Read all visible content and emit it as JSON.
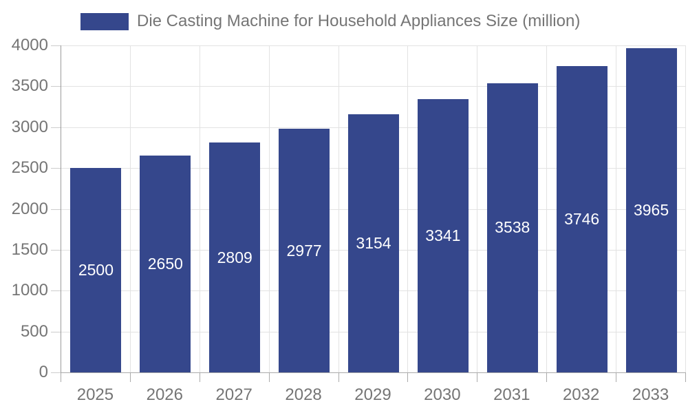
{
  "chart_data": {
    "type": "bar",
    "title": "Die Casting Machine for Household Appliances Size (million)",
    "legend_entries": [
      "Die Casting Machine for Household Appliances Size (million)"
    ],
    "legend_position": "top-left",
    "categories": [
      "2025",
      "2026",
      "2027",
      "2028",
      "2029",
      "2030",
      "2031",
      "2032",
      "2033"
    ],
    "values": [
      2500,
      2650,
      2809,
      2977,
      3154,
      3341,
      3538,
      3746,
      3965
    ],
    "bar_value_labels": [
      "2500",
      "2650",
      "2809",
      "2977",
      "3154",
      "3341",
      "3538",
      "3746",
      "3965"
    ],
    "xlabel": "",
    "ylabel": "",
    "ylim": [
      0,
      4000
    ],
    "yticks": [
      0,
      500,
      1000,
      1500,
      2000,
      2500,
      3000,
      3500,
      4000
    ],
    "grid": true,
    "value_labels_inside_bars": true,
    "colors": {
      "bar": "#35478C",
      "bar_label": "#ffffff",
      "axis_text": "#757575",
      "legend_text": "#757575",
      "grid": "#e2e2e2",
      "axis_line": "#9a9a9a"
    }
  }
}
